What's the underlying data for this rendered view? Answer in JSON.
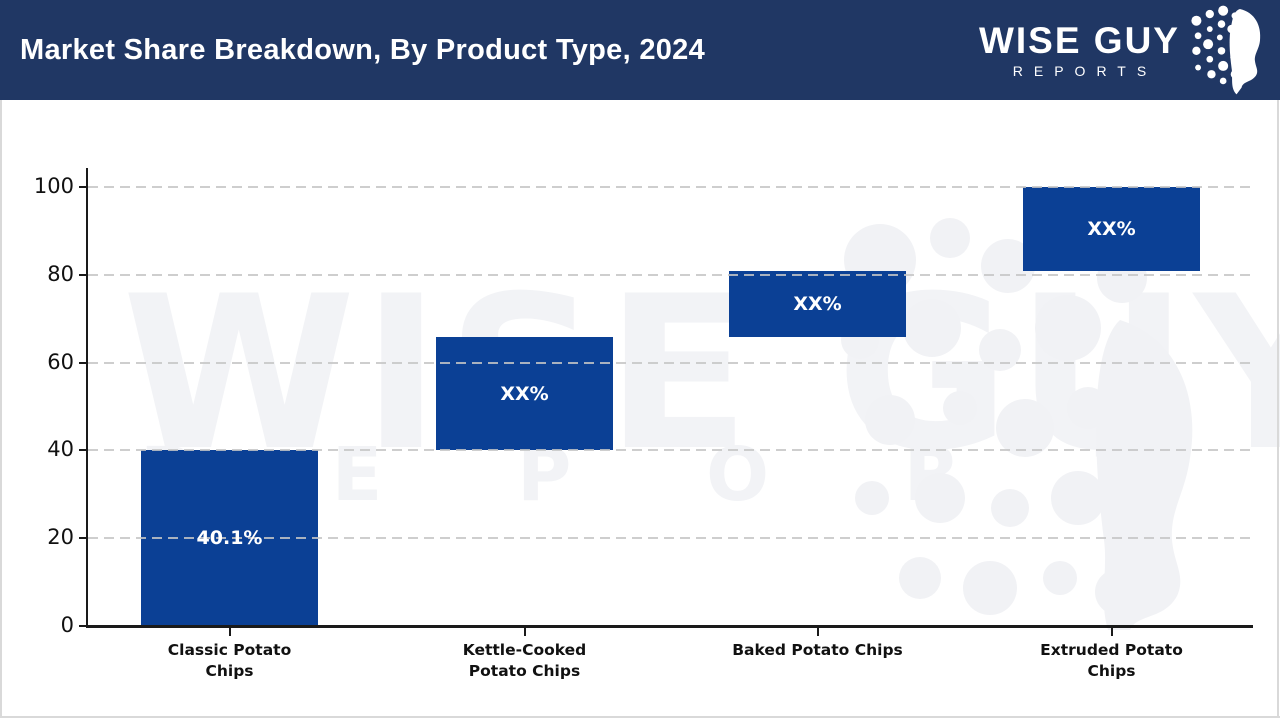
{
  "header": {
    "title": "Market Share Breakdown, By Product Type, 2024",
    "bg_color": "#203764",
    "logo": {
      "line1": "WISE GUY",
      "line2": "REPORTS"
    }
  },
  "watermark": {
    "line1": "WISE GUY",
    "line2": "REPORTS"
  },
  "chart_data": {
    "type": "bar",
    "subtype": "waterfall",
    "title": "Market Share Breakdown, By Product Type, 2024",
    "categories": [
      {
        "name": "Classic Potato Chips",
        "lines": [
          "Classic Potato",
          "Chips"
        ]
      },
      {
        "name": "Kettle-Cooked Potato Chips",
        "lines": [
          "Kettle-Cooked",
          "Potato Chips"
        ]
      },
      {
        "name": "Baked Potato Chips",
        "lines": [
          "Baked Potato Chips"
        ]
      },
      {
        "name": "Extruded Potato Chips",
        "lines": [
          "Extruded Potato",
          "Chips"
        ]
      }
    ],
    "segments": [
      {
        "start": 0,
        "end": 40.1,
        "label": "40.1%"
      },
      {
        "start": 40.1,
        "end": 65.8,
        "label": "XX%"
      },
      {
        "start": 65.8,
        "end": 80.8,
        "label": "XX%"
      },
      {
        "start": 80.8,
        "end": 100,
        "label": "XX%"
      }
    ],
    "yticks": [
      0,
      20,
      40,
      60,
      80,
      100
    ],
    "ylim": [
      0,
      104.5
    ],
    "xlabel": "",
    "ylabel": "",
    "grid": true,
    "grid_style": "dashed",
    "bar_color": "#0b4095",
    "bar_label_color": "#ffffff",
    "axis_color": "#1a1a1a"
  }
}
